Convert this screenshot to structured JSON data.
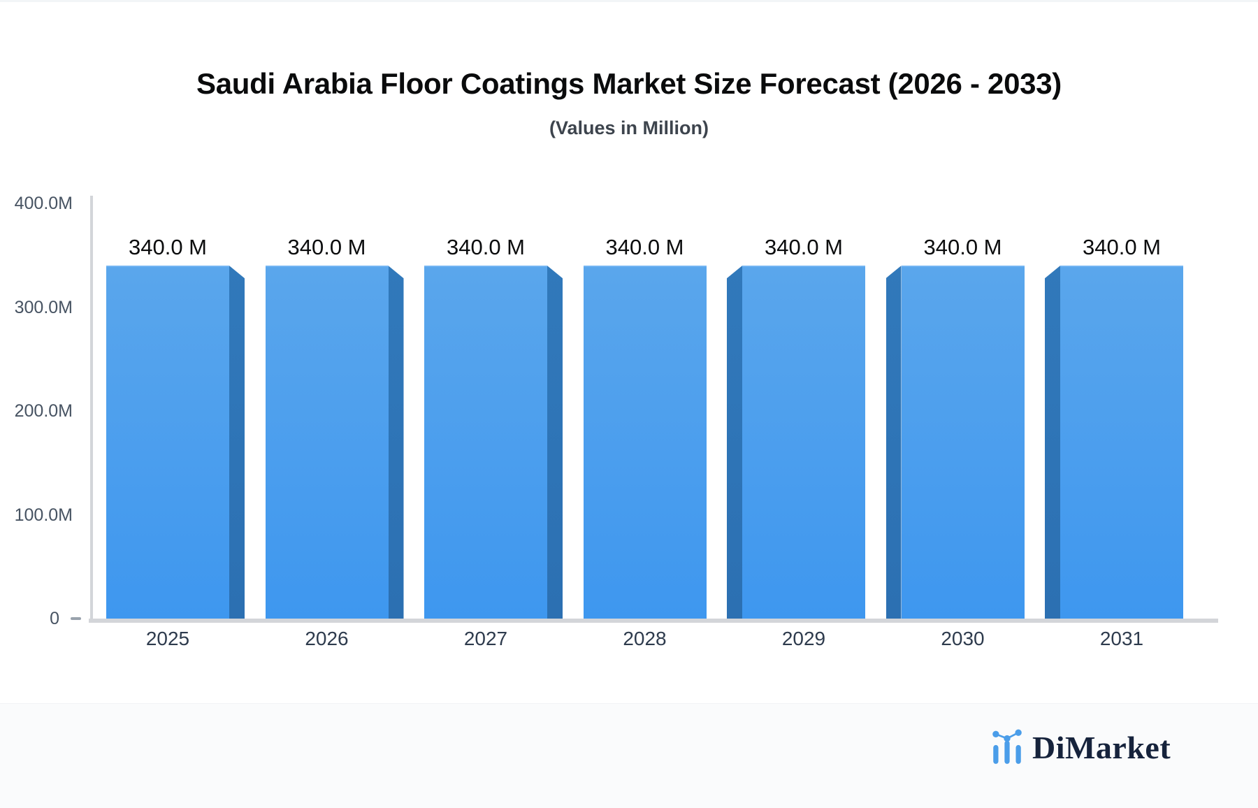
{
  "chart_data": {
    "type": "bar",
    "title": "Saudi Arabia Floor Coatings Market Size Forecast (2026 - 2033)",
    "subtitle": "(Values in Million)",
    "categories": [
      "2025",
      "2026",
      "2027",
      "2028",
      "2029",
      "2030",
      "2031"
    ],
    "values": [
      340,
      340,
      340,
      340,
      340,
      340,
      340
    ],
    "value_labels": [
      "340.0 M",
      "340.0 M",
      "340.0 M",
      "340.0 M",
      "340.0 M",
      "340.0 M",
      "340.0 M"
    ],
    "unit": "Million",
    "xlabel": "",
    "ylabel": "",
    "ylim": [
      0,
      400
    ],
    "yticks": [
      {
        "value": 400,
        "label": "400.0M",
        "dash": false
      },
      {
        "value": 300,
        "label": "300.0M",
        "dash": false
      },
      {
        "value": 200,
        "label": "200.0M",
        "dash": false
      },
      {
        "value": 100,
        "label": "100.0M",
        "dash": false
      },
      {
        "value": 0,
        "label": "0",
        "dash": true
      }
    ],
    "grid": false,
    "legend": false,
    "colors": {
      "bar_face_top": "#5aa6ec",
      "bar_face_bottom": "#3e97ef",
      "bar_side": "#2e74b6",
      "axis": "#d3d5d9",
      "value_label": "#0b0c0d",
      "tick_label": "#475362"
    }
  },
  "brand": {
    "name": "DiMarket",
    "icon": "dimarket-chart-icon",
    "icon_color": "#4a9de9",
    "text_color": "#16233c"
  }
}
